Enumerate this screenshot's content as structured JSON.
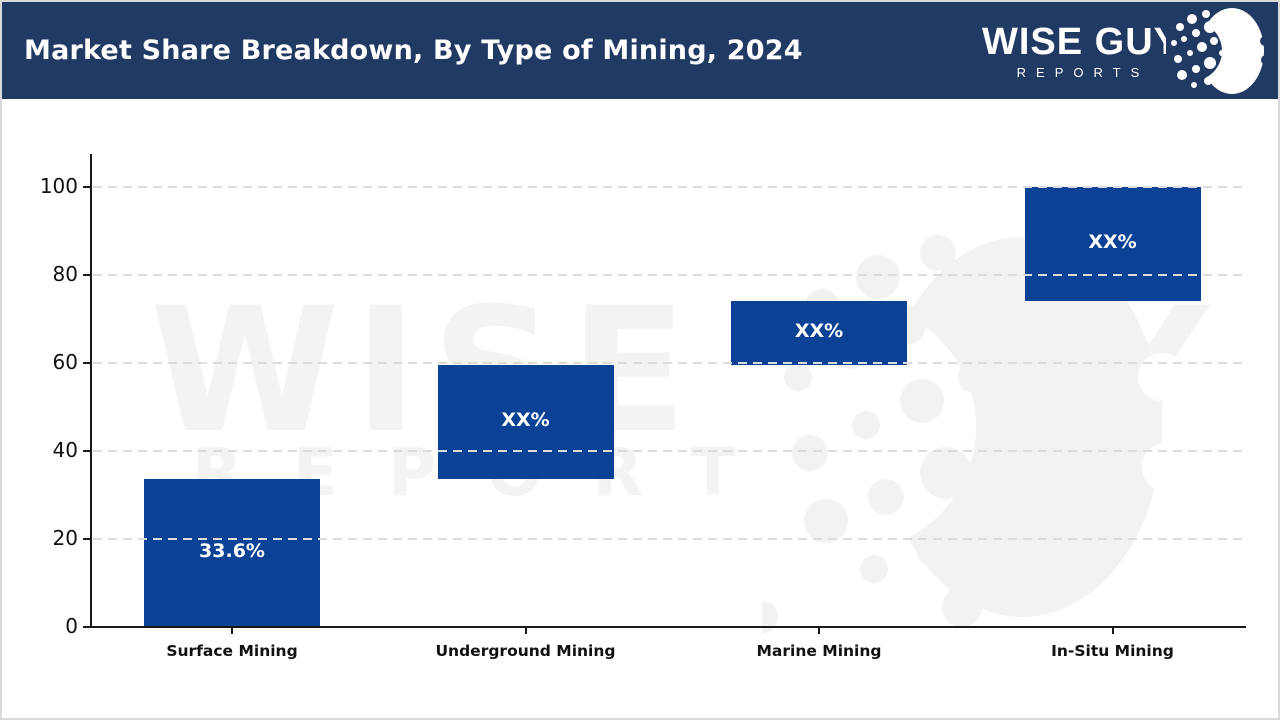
{
  "header": {
    "title": "Market Share Breakdown, By Type of Mining, 2024",
    "bg_color": "#213a64",
    "logo": {
      "line1": "WISE GUY",
      "line2": "REPORTS"
    }
  },
  "watermark": {
    "line1": "WISE GUY",
    "line2": "REPORTS"
  },
  "chart_data": {
    "type": "bar",
    "subtype": "waterfall",
    "title": "Market Share Breakdown, By Type of Mining, 2024",
    "categories": [
      "Surface Mining",
      "Underground Mining",
      "Marine Mining",
      "In-Situ Mining"
    ],
    "bar_labels": [
      "33.6%",
      "XX%",
      "XX%",
      "XX%"
    ],
    "segments": [
      {
        "start": 0,
        "end": 33.6
      },
      {
        "start": 33.6,
        "end": 59.6
      },
      {
        "start": 59.6,
        "end": 74.2
      },
      {
        "start": 74.2,
        "end": 100
      }
    ],
    "segment_sizes_est": [
      33.6,
      26.0,
      14.6,
      25.8
    ],
    "ylim": [
      0,
      100
    ],
    "yticks": [
      0,
      20,
      40,
      60,
      80,
      100
    ],
    "xlabel": "",
    "ylabel": "",
    "grid": "dashed horizontal, drawn over bars",
    "legend": "none",
    "bar_color": "#0b4295",
    "bar_label_color": "#ffffff",
    "axis_color": "#1a1a1a",
    "grid_color": "#dcdcdc"
  }
}
